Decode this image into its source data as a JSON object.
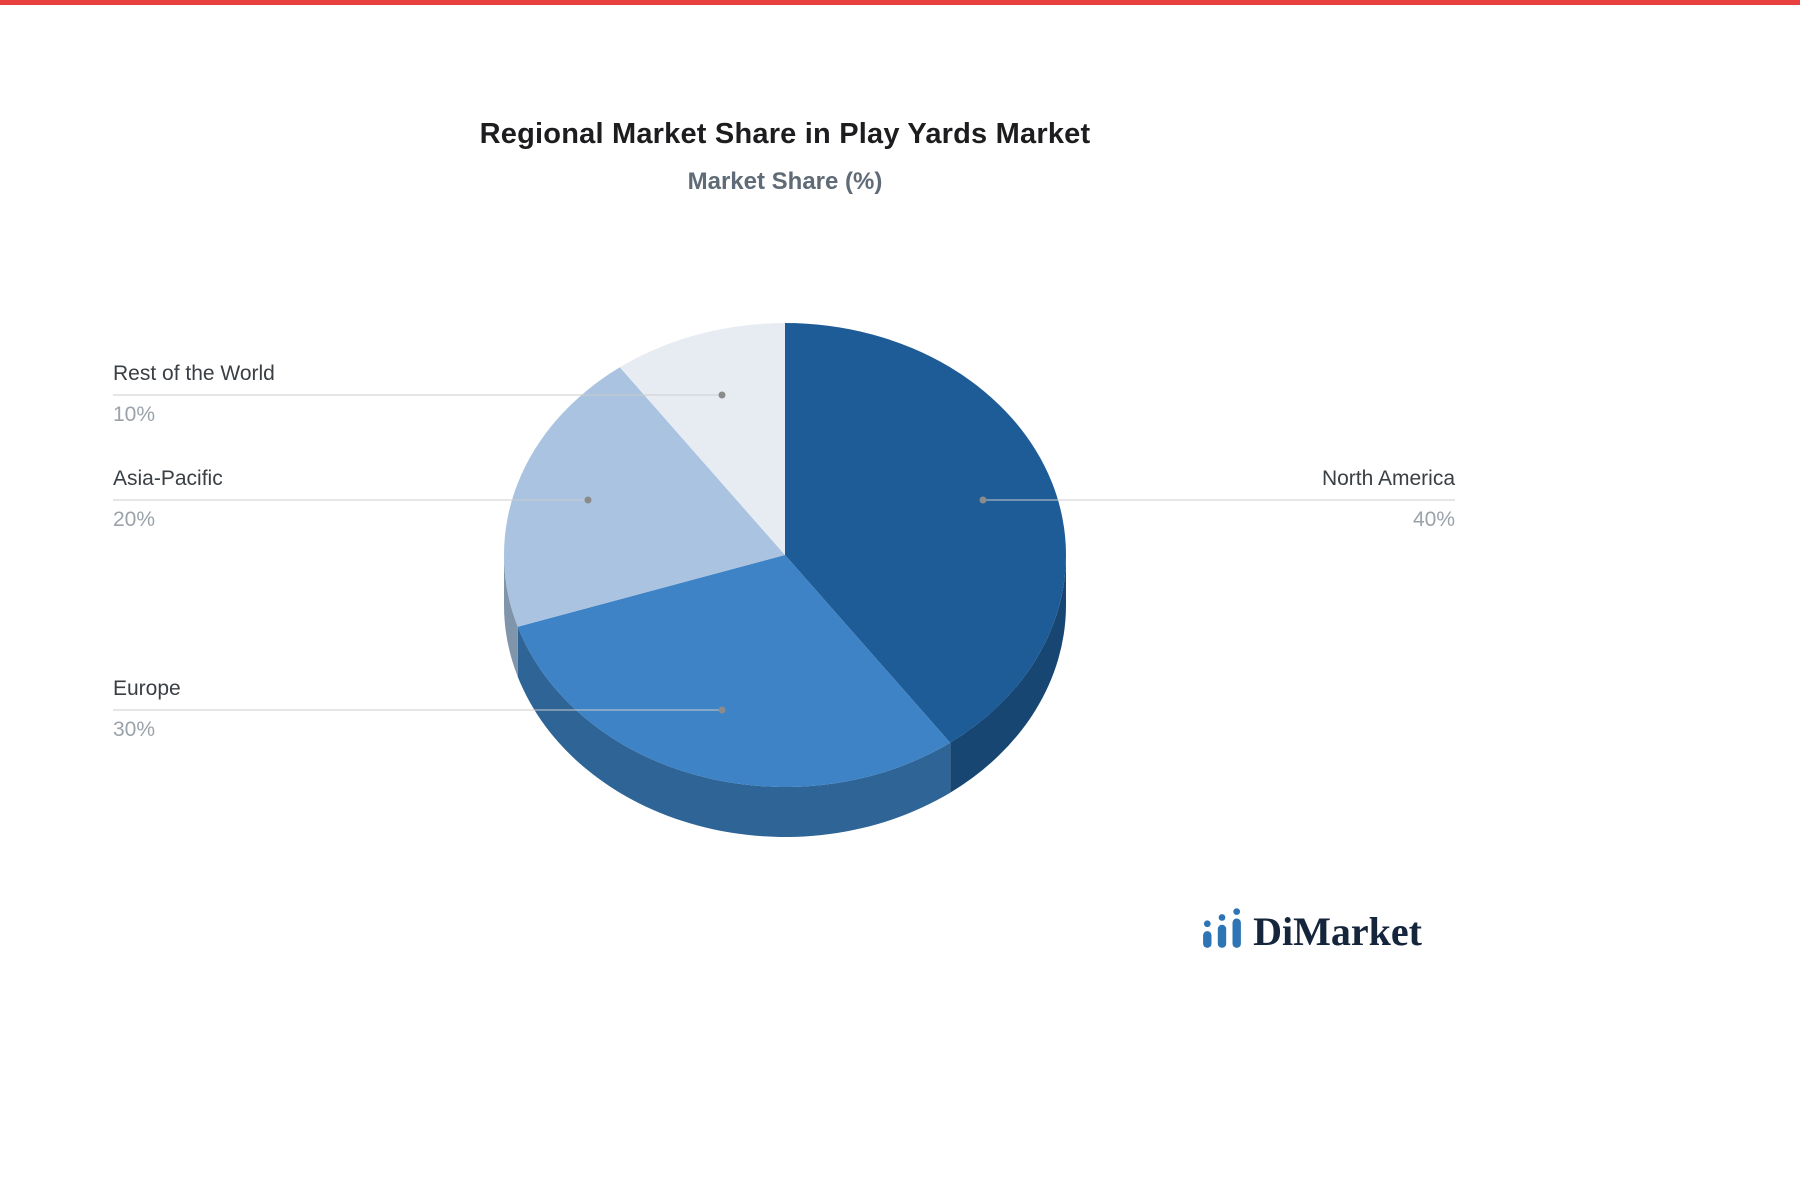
{
  "page": {
    "top_bar_color": "#e8403f"
  },
  "header": {
    "title": "Regional Market Share in Play Yards Market",
    "subtitle": "Market Share (%)"
  },
  "brand": {
    "name": "DiMarket",
    "icon": "bar-chart-icon",
    "icon_color": "#2e75b6",
    "text_color": "#15263c"
  },
  "chart_data": {
    "type": "pie",
    "style": "3d",
    "title": "Regional Market Share in Play Yards Market",
    "subtitle": "Market Share (%)",
    "unit": "%",
    "direction": "clockwise",
    "start_angle_deg": 0,
    "legend_position": "none",
    "categories": [
      "North America",
      "Europe",
      "Asia-Pacific",
      "Rest of the World"
    ],
    "values": [
      40,
      30,
      20,
      10
    ],
    "value_labels": [
      "40%",
      "30%",
      "20%",
      "10%"
    ],
    "colors": [
      "#1e5c97",
      "#3e83c6",
      "#a9c3e0",
      "#e7ecf3"
    ]
  }
}
